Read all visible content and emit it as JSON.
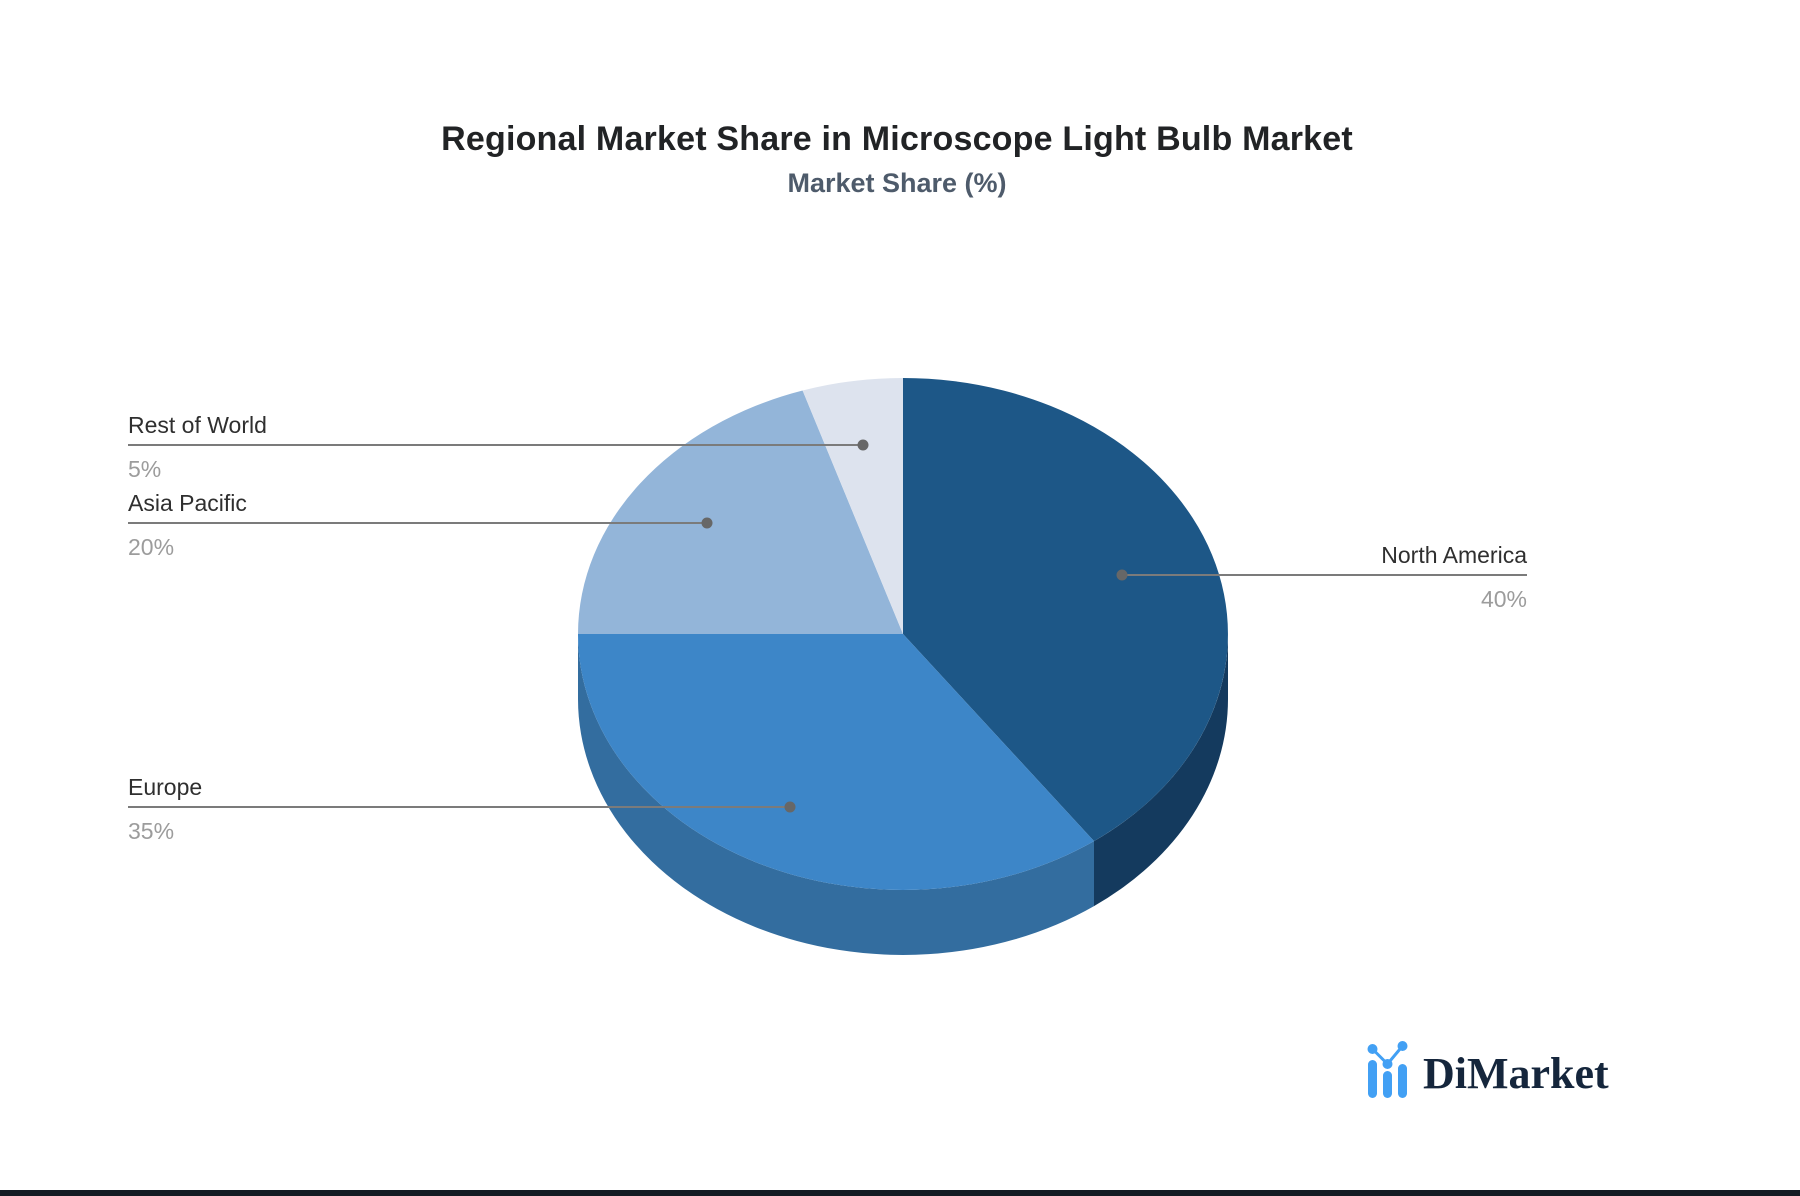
{
  "header": {
    "title": "Regional Market Share in Microscope Light Bulb Market",
    "subtitle": "Market Share (%)"
  },
  "brand": {
    "name": "DiMarket"
  },
  "chart_data": {
    "type": "pie",
    "title": "Regional Market Share in Microscope Light Bulb Market",
    "subtitle": "Market Share (%)",
    "unit": "%",
    "effect_3d": true,
    "direction": "clockwise",
    "start_angle_deg": 0,
    "legend": "none",
    "connector_color": "#7b7b7b",
    "slices": [
      {
        "label": "North America",
        "value": 40,
        "display": "40%",
        "color": "#1d5787",
        "side_color": "#143a5e"
      },
      {
        "label": "Europe",
        "value": 35,
        "display": "35%",
        "color": "#3d86c8",
        "side_color": "#336d9f"
      },
      {
        "label": "Asia Pacific",
        "value": 20,
        "display": "20%",
        "color": "#93b5d9",
        "side_color": "#7e9fc4"
      },
      {
        "label": "Rest of World",
        "value": 5,
        "display": "5%",
        "color": "#dde3ee",
        "side_color": "#c3cddd"
      }
    ]
  }
}
